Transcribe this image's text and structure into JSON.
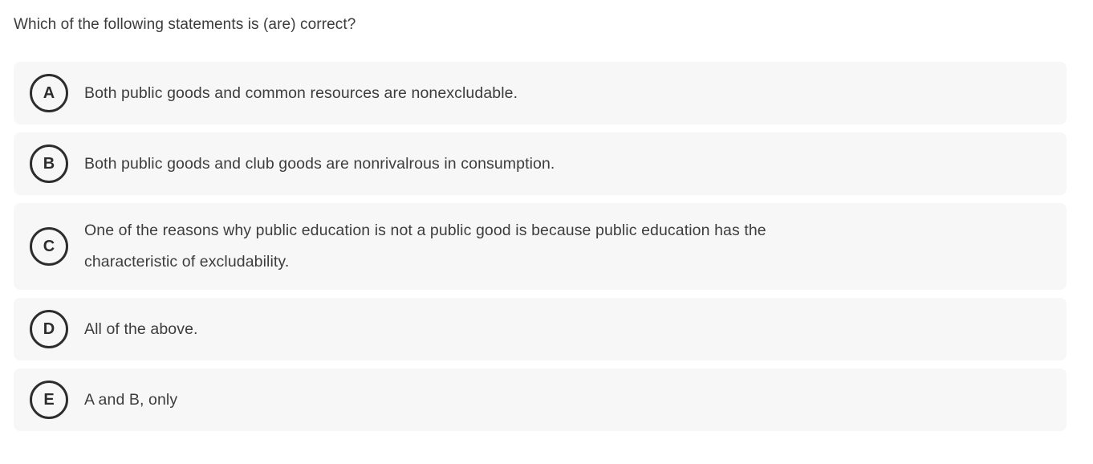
{
  "question": {
    "text": "Which of the following statements is (are) correct?"
  },
  "options": [
    {
      "letter": "A",
      "label": "Both public goods and common resources are nonexcludable."
    },
    {
      "letter": "B",
      "label": "Both public goods and club goods are nonrivalrous in consumption."
    },
    {
      "letter": "C",
      "label": "One of the reasons why public education is not a public good is because public education has the\ncharacteristic of excludability."
    },
    {
      "letter": "D",
      "label": "All of the above."
    },
    {
      "letter": "E",
      "label": "A and B, only"
    }
  ],
  "colors": {
    "page_background": "#ffffff",
    "option_row_background": "#f7f7f7",
    "text": "#3d3d3d",
    "letter_badge_border": "#2d2d2d"
  }
}
